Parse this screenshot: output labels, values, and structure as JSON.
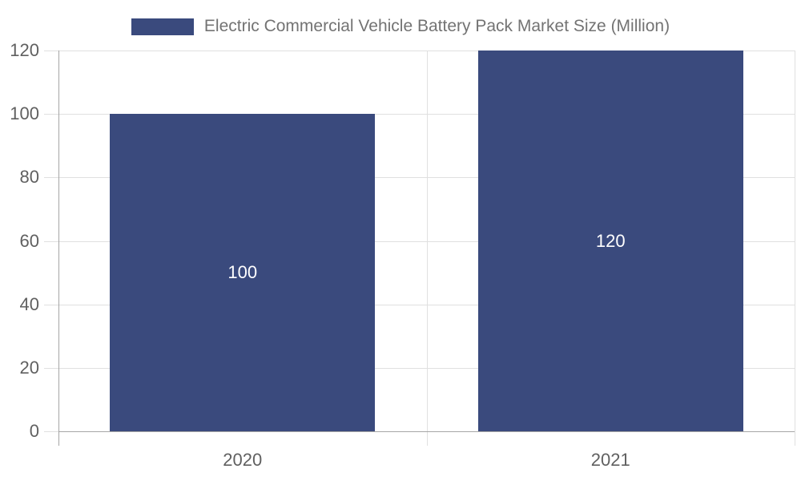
{
  "legend": {
    "label": "Electric Commercial Vehicle Battery Pack Market Size (Million)"
  },
  "colors": {
    "bar": "#3a4a7d",
    "axis_line": "#a6a6a6",
    "grid_line": "#e0e0e0",
    "tick_label": "#606060",
    "legend_text": "#737373",
    "value_label": "#ffffff",
    "background": "#ffffff"
  },
  "chart_data": {
    "type": "bar",
    "title": "Electric Commercial Vehicle Battery Pack Market Size (Million)",
    "categories": [
      "2020",
      "2021"
    ],
    "values": [
      100,
      120
    ],
    "value_labels": [
      "100",
      "120"
    ],
    "series": [
      {
        "name": "Electric Commercial Vehicle Battery Pack Market Size (Million)",
        "values": [
          100,
          120
        ]
      }
    ],
    "xlabel": "",
    "ylabel": "",
    "ylim": [
      0,
      120
    ],
    "yticks": [
      0,
      20,
      40,
      60,
      80,
      100,
      120
    ],
    "grid": true,
    "legend_position": "top-center",
    "value_label_position": "inside-center"
  }
}
